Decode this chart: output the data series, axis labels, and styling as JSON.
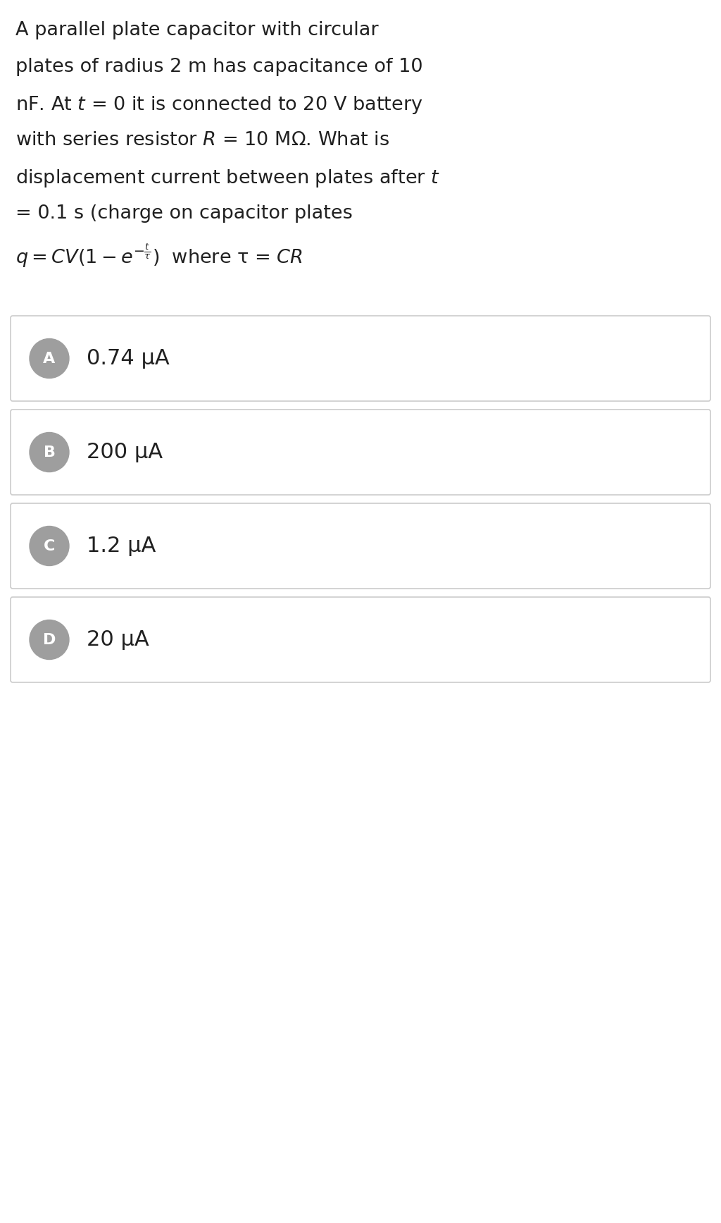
{
  "background_color": "#ffffff",
  "question_lines": [
    "A parallel plate capacitor with circular",
    "plates of radius 2 m has capacitance of 10",
    "nF. At $t$ = 0 it is connected to 20 V battery",
    "with series resistor $R$ = 10 MΩ. What is",
    "displacement current between plates after $t$",
    "= 0.1 s (charge on capacitor plates"
  ],
  "options": [
    {
      "label": "A",
      "text": "0.74 μA"
    },
    {
      "label": "B",
      "text": "200 μA"
    },
    {
      "label": "C",
      "text": "1.2 μA"
    },
    {
      "label": "D",
      "text": "20 μA"
    }
  ],
  "circle_color": "#9e9e9e",
  "circle_text_color": "#ffffff",
  "box_border_color": "#cccccc",
  "text_color": "#212121",
  "font_size_question": 19.5,
  "font_size_options": 22,
  "font_size_label": 16
}
